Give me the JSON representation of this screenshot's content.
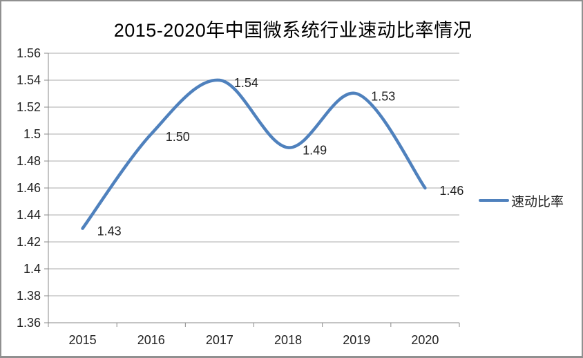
{
  "title": "2015-2020年中国微系统行业速动比率情况",
  "legend": {
    "label": "速动比率"
  },
  "colors": {
    "line": "#4F81BD",
    "gridline": "#ABABAB",
    "axis": "#898989",
    "tick_text": "#1f1f1f",
    "title_text": "#000000",
    "frame_border": "#909090"
  },
  "chart_data": {
    "type": "line",
    "title": "2015-2020年中国微系统行业速动比率情况",
    "categories": [
      "2015",
      "2016",
      "2017",
      "2018",
      "2019",
      "2020"
    ],
    "series": [
      {
        "name": "速动比率",
        "values": [
          1.43,
          1.5,
          1.54,
          1.49,
          1.53,
          1.46
        ]
      }
    ],
    "point_labels": [
      "1.43",
      "1.50",
      "1.54",
      "1.49",
      "1.53",
      "1.46"
    ],
    "xlabel": "",
    "ylabel": "",
    "ylim": [
      1.36,
      1.56
    ],
    "y_tick_step": 0.02,
    "y_tick_labels": [
      "1.36",
      "1.38",
      "1.4",
      "1.42",
      "1.44",
      "1.46",
      "1.48",
      "1.5",
      "1.52",
      "1.54",
      "1.56"
    ],
    "grid": true,
    "smooth": true,
    "legend_position": "right",
    "line_color": "#4F81BD"
  }
}
